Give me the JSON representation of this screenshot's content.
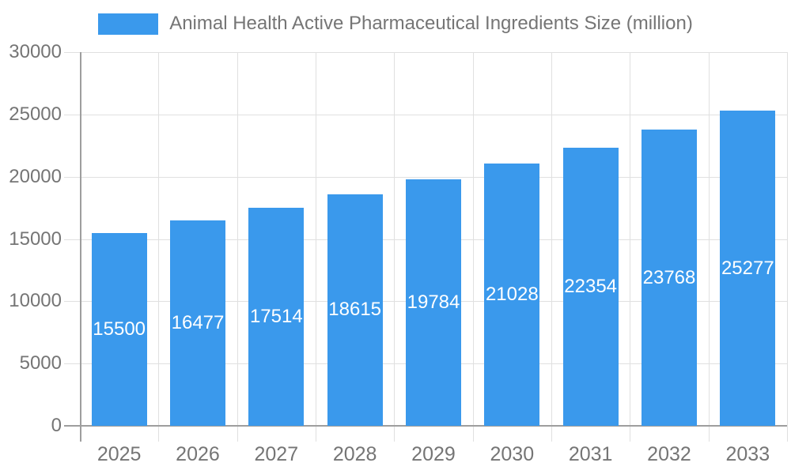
{
  "legend": {
    "label": "Animal Health Active Pharmaceutical Ingredients Size (million)"
  },
  "chart_data": {
    "type": "bar",
    "title": "Animal Health Active Pharmaceutical Ingredients Size (million)",
    "categories": [
      "2025",
      "2026",
      "2027",
      "2028",
      "2029",
      "2030",
      "2031",
      "2032",
      "2033"
    ],
    "values": [
      15500,
      16477,
      17514,
      18615,
      19784,
      21028,
      22354,
      23768,
      25277
    ],
    "series": [
      {
        "name": "Animal Health Active Pharmaceutical Ingredients Size (million)",
        "values": [
          15500,
          16477,
          17514,
          18615,
          19784,
          21028,
          22354,
          23768,
          25277
        ]
      }
    ],
    "xlabel": "",
    "ylabel": "",
    "ylim": [
      0,
      30000
    ],
    "ytick_interval": 5000,
    "ytick_labels": [
      "0",
      "5000",
      "10000",
      "15000",
      "20000",
      "25000",
      "30000"
    ],
    "grid": true,
    "legend_position": "top",
    "value_labels": "centered-white-inside-bars",
    "colors": {
      "bar": "#3a99ec",
      "value_label": "#ffffff",
      "grid": "#e0e0e0",
      "axis": "#9e9e9e",
      "text": "#757575",
      "background": "#ffffff"
    }
  }
}
